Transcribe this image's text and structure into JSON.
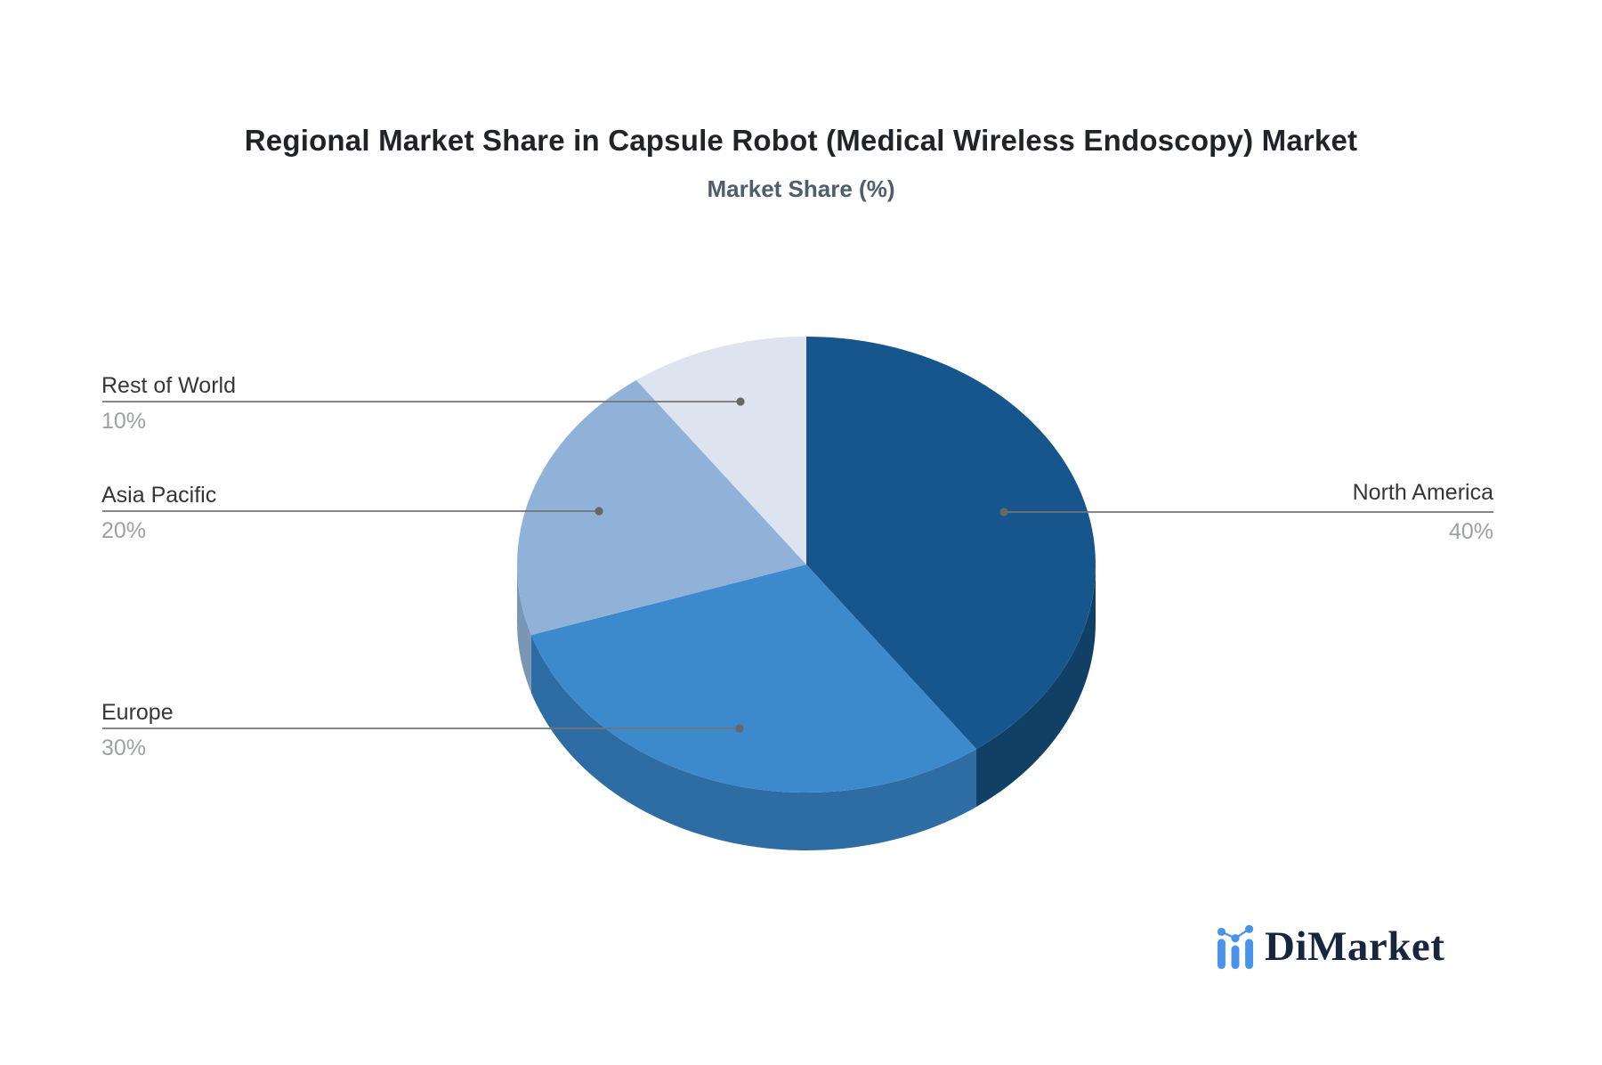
{
  "header": {
    "title": "Regional Market Share in Capsule Robot (Medical Wireless Endoscopy) Market",
    "subtitle": "Market Share (%)"
  },
  "chart_data": {
    "type": "pie",
    "style": "3d",
    "title": "Regional Market Share in Capsule Robot (Medical Wireless Endoscopy) Market",
    "subtitle_unit": "Market Share (%)",
    "start_angle_deg": 90,
    "direction": "clockwise",
    "legend_position": "callout-labels",
    "slices": [
      {
        "label": "North America",
        "value": 40,
        "pct": "40%",
        "color": "#17568D",
        "side_color": "#114066"
      },
      {
        "label": "Europe",
        "value": 30,
        "pct": "30%",
        "color": "#3C89CC",
        "side_color": "#2E6DA3"
      },
      {
        "label": "Asia Pacific",
        "value": 20,
        "pct": "20%",
        "color": "#90B2D9",
        "side_color": "#7B96B4"
      },
      {
        "label": "Rest of World",
        "value": 10,
        "pct": "10%",
        "color": "#DDE4EF",
        "side_color": "#B9C4D6"
      }
    ]
  },
  "branding": {
    "name": "DiMarket",
    "icon": "bar-chart-logo-icon",
    "accent_color": "#4A93EA",
    "text_color": "#17263F"
  }
}
